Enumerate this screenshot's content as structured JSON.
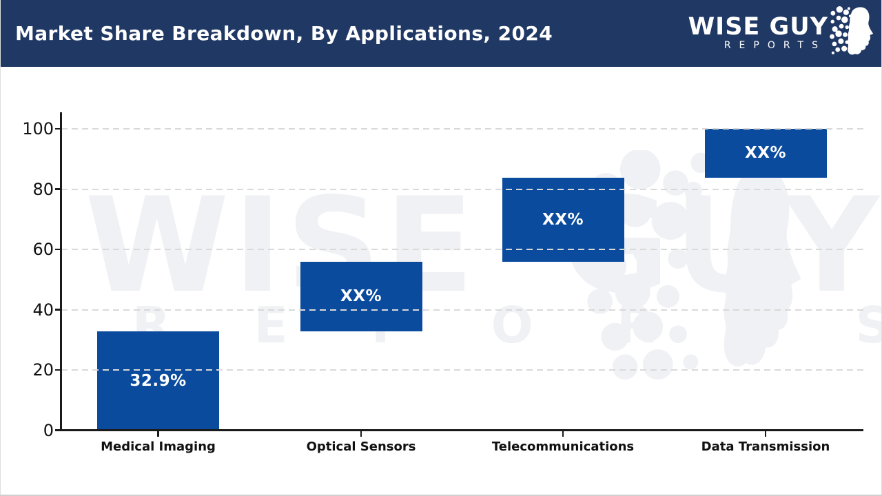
{
  "header": {
    "title": "Market Share Breakdown, By Applications, 2024"
  },
  "logo": {
    "line1": "WISE GUY",
    "line2": "REPORTS"
  },
  "watermark": {
    "line1": "WISE GUY",
    "line2": "R E P O R T S"
  },
  "colors": {
    "header_bg": "#203864",
    "bar": "#0a4b9e",
    "grid": "#d9d9d9",
    "watermark": "#f0f1f4",
    "axis": "#1a1a1a",
    "title_text": "#ffffff",
    "bar_label_text": "#ffffff"
  },
  "chart_data": {
    "type": "bar",
    "subtype": "waterfall",
    "title": "Market Share Breakdown, By Applications, 2024",
    "categories": [
      "Medical Imaging",
      "Optical Sensors",
      "Telecommunications",
      "Data Transmission"
    ],
    "segments": [
      {
        "category": "Medical Imaging",
        "start": 0,
        "end": 32.9,
        "label": "32.9%"
      },
      {
        "category": "Optical Sensors",
        "start": 32.9,
        "end": 56.0,
        "label": "XX%"
      },
      {
        "category": "Telecommunications",
        "start": 56.0,
        "end": 83.8,
        "label": "XX%"
      },
      {
        "category": "Data Transmission",
        "start": 83.8,
        "end": 100,
        "label": "XX%"
      }
    ],
    "xlabel": "",
    "ylabel": "",
    "ylim": [
      0,
      100
    ],
    "yticks": [
      0,
      20,
      40,
      60,
      80,
      100
    ],
    "grid": "horizontal-dashed",
    "legend": false
  }
}
